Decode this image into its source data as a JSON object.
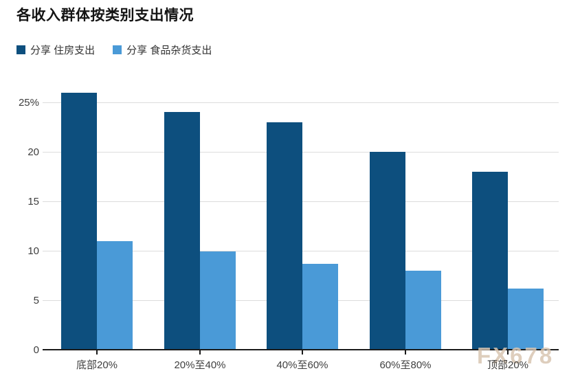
{
  "title": "各收入群体按类别支出情况",
  "watermark": {
    "text": "FX678"
  },
  "colors": {
    "housing": "#0d4f7e",
    "groceries": "#4a9ad7",
    "grid": "#dcdcdc",
    "axis": "#1a1a1a",
    "tick_label": "#3d3d3d",
    "watermark": "#d9c6b2"
  },
  "legend": {
    "items": [
      {
        "label": "分享 住房支出"
      },
      {
        "label": "分享 食品杂货支出"
      }
    ]
  },
  "chart_data": {
    "type": "bar",
    "title": "各收入群体按类别支出情况",
    "categories": [
      "底部20%",
      "20%至40%",
      "40%至60%",
      "60%至80%",
      "顶部20%"
    ],
    "series": [
      {
        "name": "分享 住房支出",
        "color": "#0d4f7e",
        "values": [
          26,
          24,
          23,
          20,
          18
        ]
      },
      {
        "name": "分享 食品杂货支出",
        "color": "#4a9ad7",
        "values": [
          11,
          9.9,
          8.7,
          8,
          6.2
        ]
      }
    ],
    "xlabel": "",
    "ylabel": "",
    "ylim": [
      0,
      26
    ],
    "yticks": [
      {
        "value": 0,
        "label": "0"
      },
      {
        "value": 5,
        "label": "5"
      },
      {
        "value": 10,
        "label": "10"
      },
      {
        "value": 15,
        "label": "15"
      },
      {
        "value": 20,
        "label": "20"
      },
      {
        "value": 25,
        "label": "25%"
      }
    ],
    "grid": true,
    "legend_position": "top-left"
  }
}
